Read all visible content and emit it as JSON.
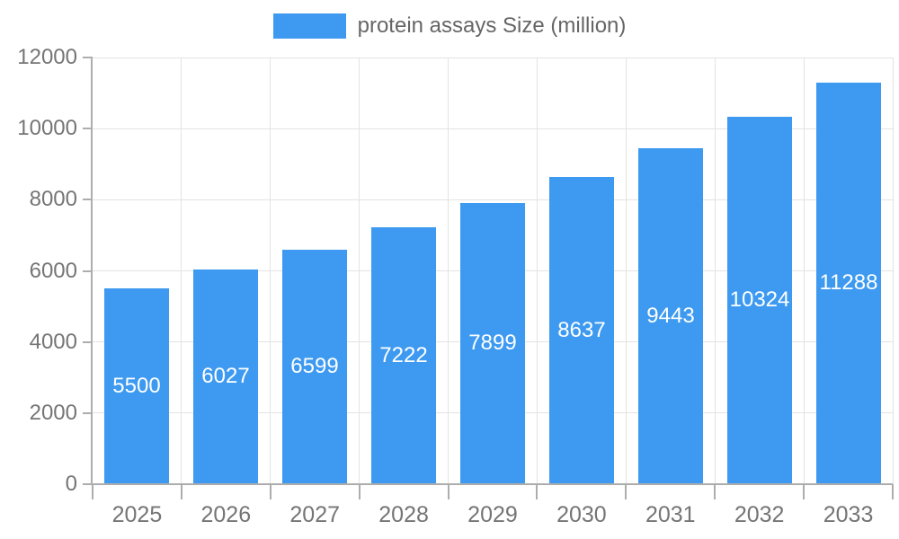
{
  "chart_data": {
    "type": "bar",
    "title": "protein assays Size (million)",
    "legend": {
      "label": "protein assays Size (million)",
      "position": "top-center"
    },
    "categories": [
      "2025",
      "2026",
      "2027",
      "2028",
      "2029",
      "2030",
      "2031",
      "2032",
      "2033"
    ],
    "values": [
      5500,
      6027,
      6599,
      7222,
      7899,
      8637,
      9443,
      10324,
      11288
    ],
    "series": [
      {
        "name": "protein assays Size (million)",
        "values": [
          5500,
          6027,
          6599,
          7222,
          7899,
          8637,
          9443,
          10324,
          11288
        ]
      }
    ],
    "xlabel": "",
    "ylabel": "",
    "ylim": [
      0,
      12000
    ],
    "yticks": [
      0,
      2000,
      4000,
      6000,
      8000,
      10000,
      12000
    ],
    "grid": true,
    "value_labels_inside_bars": true
  },
  "colors": {
    "bar": "#3D9AF0",
    "grid": "#E3E3E3",
    "axis": "#ADADAD",
    "tick_label": "#757575",
    "legend_text": "#666666",
    "value_label": "#FFFFFF",
    "background": "#FFFFFF"
  }
}
